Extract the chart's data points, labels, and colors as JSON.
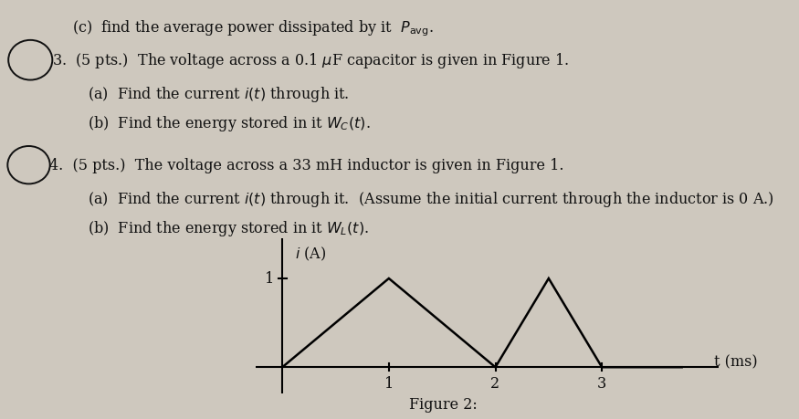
{
  "background_color": "#cec8be",
  "text_color": "#111111",
  "fig_x": [
    0,
    1,
    2,
    2.5,
    3,
    3.75
  ],
  "fig_y": [
    0,
    1,
    0,
    1,
    0,
    0
  ],
  "fig_xticks": [
    1,
    2,
    3
  ],
  "fig_xlim": [
    -0.25,
    4.1
  ],
  "fig_ylim": [
    -0.3,
    1.45
  ],
  "fig_xlabel": "t (ms)",
  "fig_ylabel": "i (A)",
  "fig_caption": "Figure 2:",
  "y_tick_label": "1",
  "x_tick_labels": [
    "1",
    "2",
    "3"
  ]
}
